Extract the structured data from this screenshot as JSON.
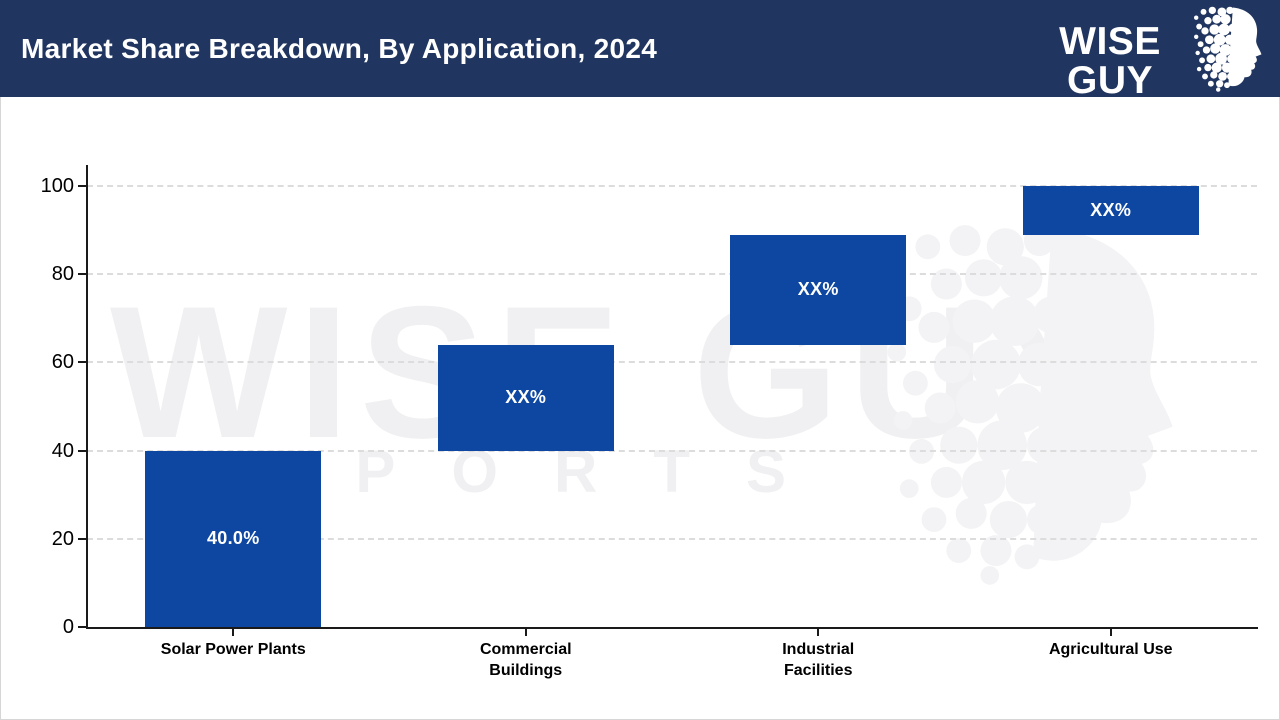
{
  "header": {
    "title": "Market Share Breakdown, By Application, 2024",
    "bg_color": "#20355f",
    "logo": {
      "line1": "WISE GUY",
      "line2": "REPORTS"
    }
  },
  "watermark": {
    "line1": "WISE GUY",
    "line2": "REPORTS"
  },
  "chart_data": {
    "type": "bar",
    "subtype": "waterfall",
    "title": "Market Share Breakdown, By Application, 2024",
    "xlabel": "",
    "ylabel": "",
    "categories": [
      "Solar Power Plants",
      "Commercial\nBuildings",
      "Industrial\nFacilities",
      "Agricultural Use"
    ],
    "values": [
      40,
      24,
      25,
      11
    ],
    "cumulative": [
      40,
      64,
      89,
      100
    ],
    "segments": [
      [
        0,
        40
      ],
      [
        40,
        64
      ],
      [
        64,
        89
      ],
      [
        89,
        100
      ]
    ],
    "bar_labels": [
      "40.0%",
      "XX%",
      "XX%",
      "XX%"
    ],
    "yticks": [
      0,
      20,
      40,
      60,
      80,
      100
    ],
    "ylim": [
      0,
      100
    ],
    "grid": "horizontal-dashed",
    "legend": "none",
    "bar_color": "#0d47a1",
    "grid_color": "#dcdcdc",
    "axis_color": "#1a1a1a"
  }
}
